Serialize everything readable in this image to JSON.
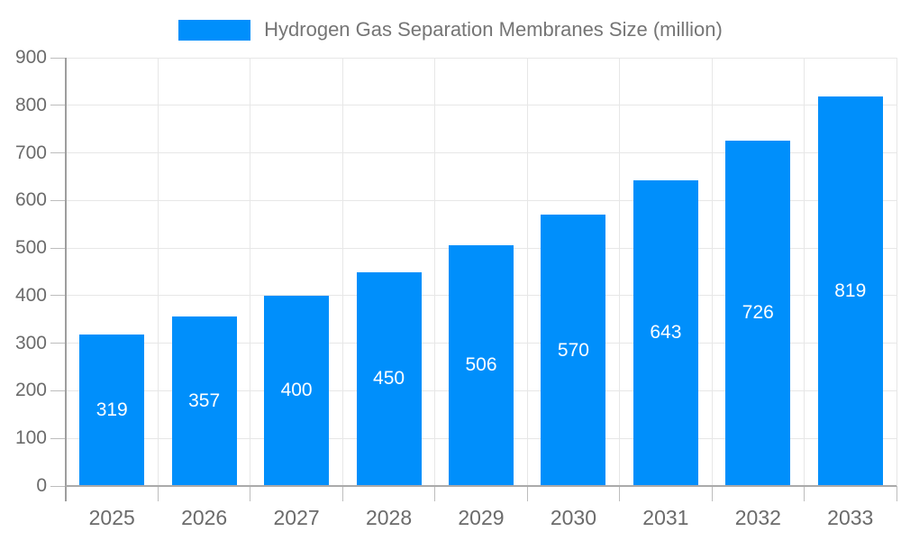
{
  "legend": {
    "label": "Hydrogen Gas Separation Membranes Size (million)"
  },
  "colors": {
    "bar": "#008FFB",
    "bar_label": "#ffffff",
    "grid": "#e7e7e7",
    "axis": "#9e9e9e",
    "tick": "#bdbdbd",
    "baseline": "#aaaaaa",
    "axis_label": "#6b6b6b",
    "legend_text": "#757575",
    "background": "#ffffff"
  },
  "chart_data": {
    "type": "bar",
    "title": "Hydrogen Gas Separation Membranes Size (million)",
    "categories": [
      "2025",
      "2026",
      "2027",
      "2028",
      "2029",
      "2030",
      "2031",
      "2032",
      "2033"
    ],
    "values": [
      319,
      357,
      400,
      450,
      506,
      570,
      643,
      726,
      819
    ],
    "series_name": "Hydrogen Gas Separation Membranes Size (million)",
    "xlabel": "",
    "ylabel": "",
    "ylim": [
      0,
      900
    ],
    "yticks": [
      0,
      100,
      200,
      300,
      400,
      500,
      600,
      700,
      800,
      900
    ],
    "grid": true,
    "legend_position": "top",
    "bar_label_position": "inside-center"
  }
}
